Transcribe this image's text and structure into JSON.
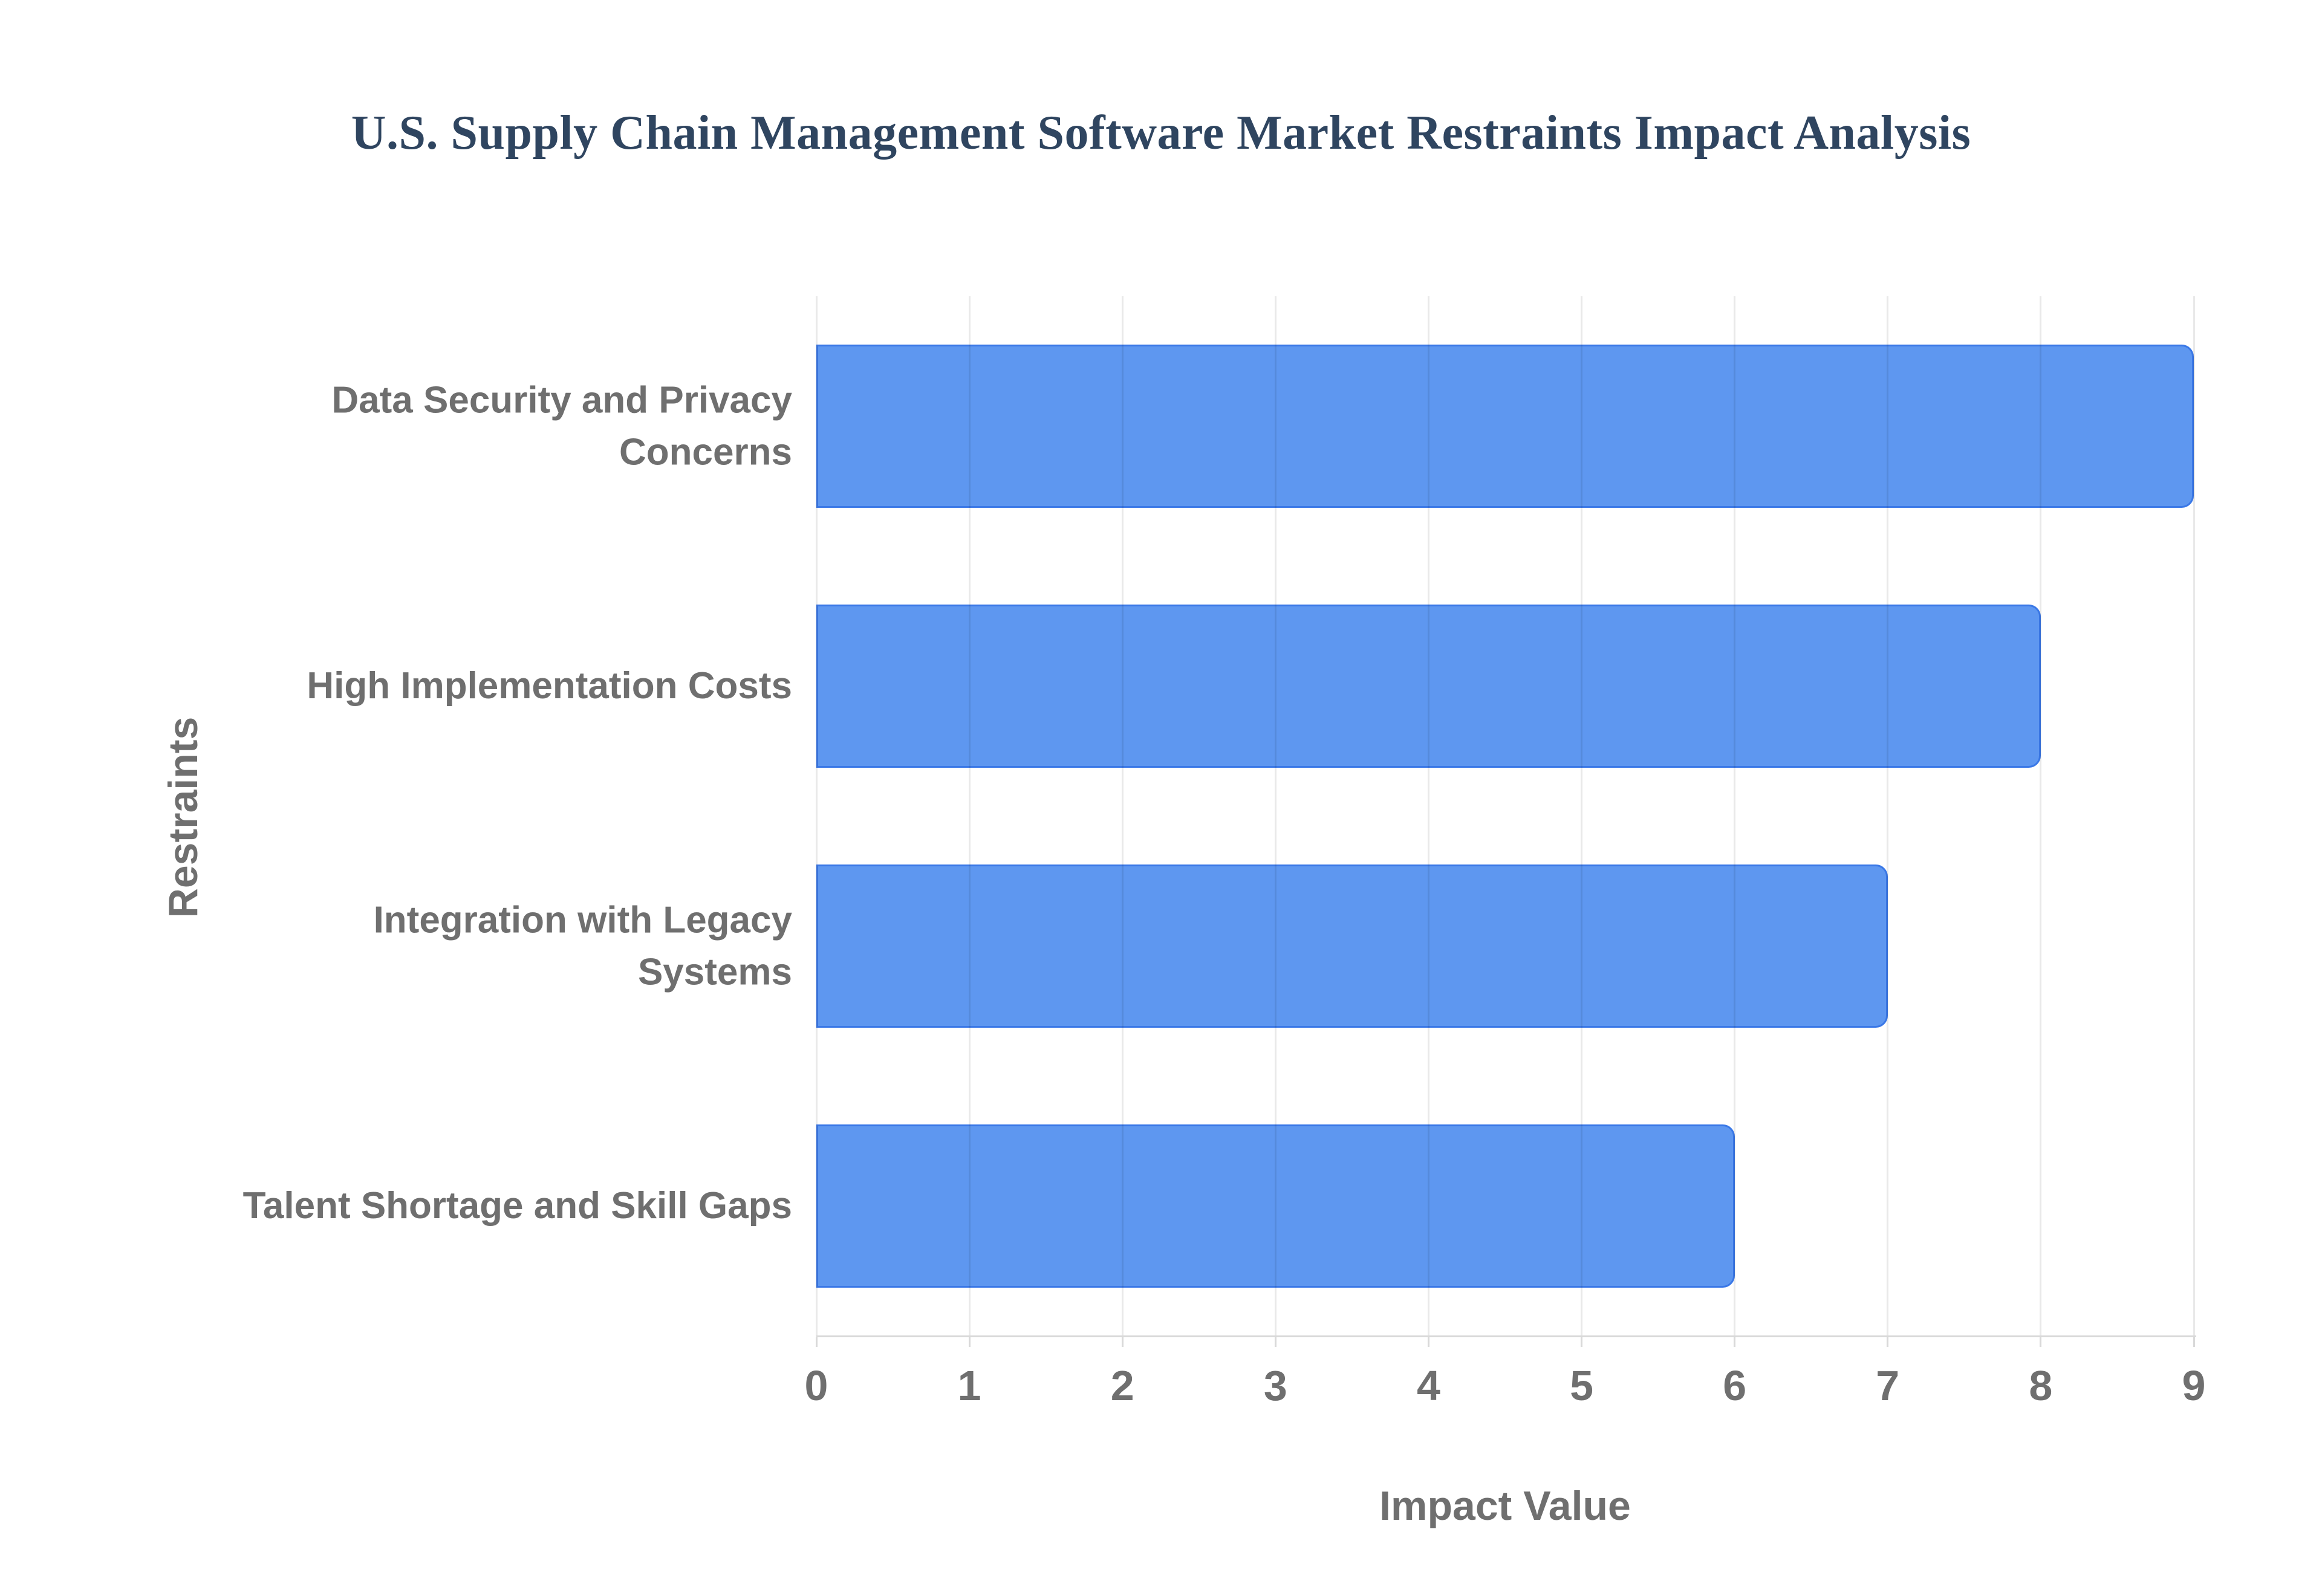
{
  "title": {
    "text": "U.S. Supply Chain Management Software Market Restraints Impact Analysis",
    "color": "#2f4560"
  },
  "chart_data": {
    "type": "bar",
    "orientation": "horizontal",
    "title": "U.S. Supply Chain Management Software Market Restraints Impact Analysis",
    "categories": [
      "Data Security and Privacy\nConcerns",
      "High Implementation Costs",
      "Integration with Legacy\nSystems",
      "Talent Shortage and Skill Gaps"
    ],
    "values": [
      9,
      8,
      7,
      6
    ],
    "xlabel": "Impact Value",
    "ylabel": "Restraints",
    "xlim": [
      0,
      9
    ],
    "x_ticks": [
      0,
      1,
      2,
      3,
      4,
      5,
      6,
      7,
      8,
      9
    ],
    "grid": true,
    "legend_position": "none",
    "bar_color": "#5e97f0",
    "bar_border_color": "#3a78e7",
    "text_color": "#6f6f6f",
    "gridline_color": "#e8e8e8",
    "axis_line_color": "#d9d9d9",
    "background_color": "#ffffff"
  }
}
